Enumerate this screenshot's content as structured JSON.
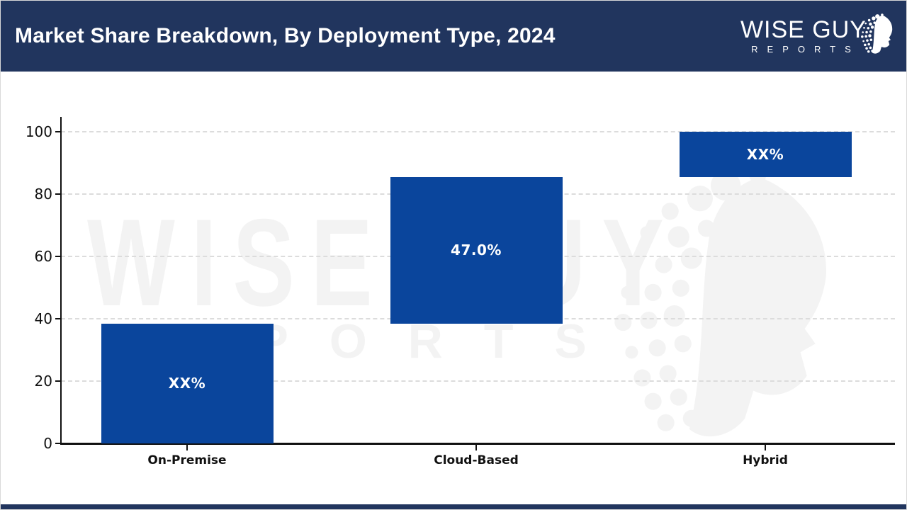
{
  "header": {
    "title": "Market Share Breakdown, By Deployment Type, 2024",
    "logo": {
      "line1": "WISE GUY",
      "line2": "REPORTS"
    }
  },
  "watermark": {
    "line1": "WISE GUY",
    "line2": "REPORTS"
  },
  "chart_data": {
    "type": "bar",
    "subtype": "floating-segment-bars",
    "title": "Market Share Breakdown, By Deployment Type, 2024",
    "categories": [
      "On-Premise",
      "Cloud-Based",
      "Hybrid"
    ],
    "segments": [
      {
        "category": "On-Premise",
        "start": 0,
        "end": 38.5,
        "label": "XX%"
      },
      {
        "category": "Cloud-Based",
        "start": 38.5,
        "end": 85.5,
        "label": "47.0%"
      },
      {
        "category": "Hybrid",
        "start": 85.5,
        "end": 100,
        "label": "XX%"
      }
    ],
    "y_ticks": [
      0,
      20,
      40,
      60,
      80,
      100
    ],
    "ylim": [
      0,
      105
    ],
    "xlabel": "",
    "ylabel": "",
    "grid": "horizontal-dashed",
    "legend": "none"
  },
  "colors": {
    "header_bg": "#21355e",
    "footer_bg": "#21355e",
    "bar": "#0a459c",
    "bar_label": "#ffffff",
    "watermark": "#f3f3f3",
    "grid": "#dcdcdc",
    "axis": "#111111",
    "tick_label": "#111111"
  }
}
